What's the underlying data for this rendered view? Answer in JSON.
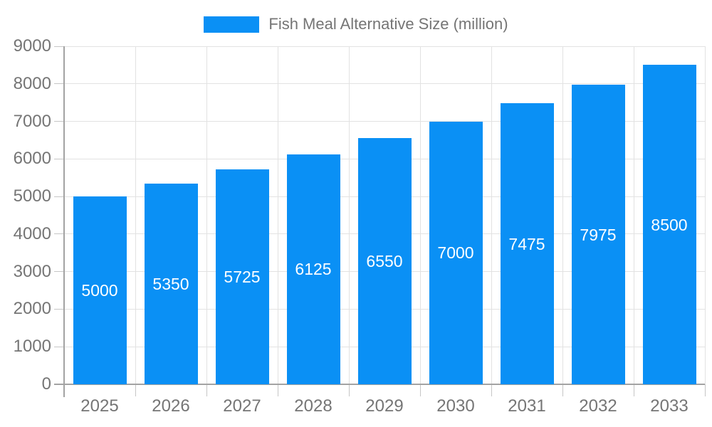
{
  "chart_data": {
    "type": "bar",
    "title": "Fish Meal Alternative Size (million)",
    "categories": [
      "2025",
      "2026",
      "2027",
      "2028",
      "2029",
      "2030",
      "2031",
      "2032",
      "2033"
    ],
    "values": [
      5000,
      5350,
      5725,
      6125,
      6550,
      7000,
      7475,
      7975,
      8500
    ],
    "bar_labels": [
      "5000",
      "5350",
      "5725",
      "6125",
      "6550",
      "7000",
      "7475",
      "7975",
      "8500"
    ],
    "xlabel": "",
    "ylabel": "",
    "ylim": [
      0,
      9000
    ],
    "yticks": [
      0,
      1000,
      2000,
      3000,
      4000,
      5000,
      6000,
      7000,
      8000,
      9000
    ],
    "grid": true,
    "legend_position": "top-center",
    "colors": {
      "bar": "#0a90f5",
      "bar_label": "#ffffff",
      "axis_text": "#757575",
      "gridline": "#e2e2e2",
      "tick": "#c6c6c6",
      "axis_line": "#a3a3a3",
      "background": "#ffffff"
    }
  }
}
